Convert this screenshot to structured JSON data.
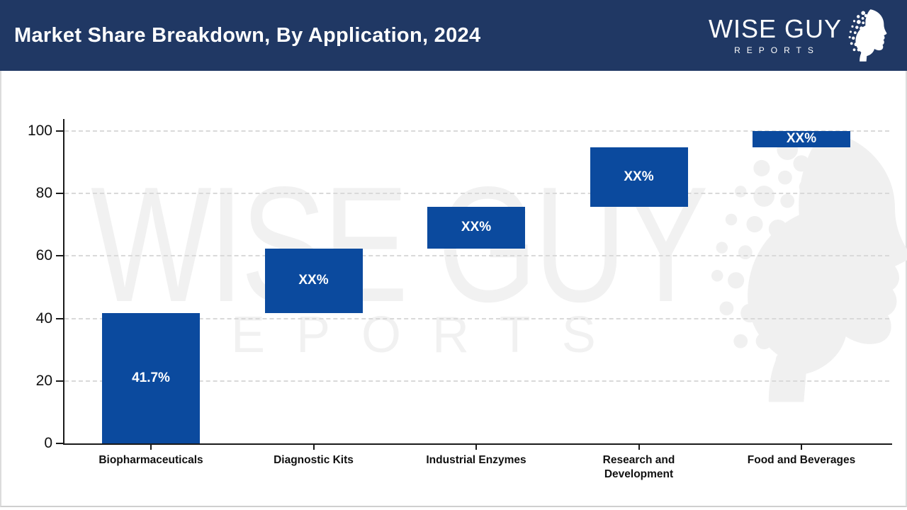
{
  "header": {
    "title": "Market Share Breakdown, By Application, 2024"
  },
  "brand": {
    "name": "WISE GUY",
    "sub": "REPORTS"
  },
  "watermark": {
    "name": "WISE GUY",
    "sub": "REPORTS"
  },
  "colors": {
    "header_bg": "#203864",
    "bar": "#0B4A9E",
    "bar_label": "#ffffff",
    "gridline": "#d9d9d9",
    "axis": "#1a1a1a",
    "watermark": "#f0f0f0"
  },
  "chart_data": {
    "type": "bar",
    "subtype": "waterfall",
    "title": "Market Share Breakdown, By Application, 2024",
    "categories": [
      "Biopharmaceuticals",
      "Diagnostic Kits",
      "Industrial Enzymes",
      "Research and Development",
      "Food and Beverages"
    ],
    "bars": [
      {
        "label": "41.7%",
        "start": 0,
        "end": 41.7
      },
      {
        "label": "XX%",
        "start": 41.7,
        "end": 62.4
      },
      {
        "label": "XX%",
        "start": 62.4,
        "end": 75.7
      },
      {
        "label": "XX%",
        "start": 75.7,
        "end": 94.8
      },
      {
        "label": "XX%",
        "start": 94.8,
        "end": 100
      }
    ],
    "yticks": [
      0,
      20,
      40,
      60,
      80,
      100
    ],
    "ylim": [
      0,
      104
    ],
    "xlabel": "",
    "ylabel": "",
    "grid": "horizontal-dashed",
    "legend": "none",
    "bar_color": "#0B4A9E",
    "label_color": "#ffffff"
  }
}
